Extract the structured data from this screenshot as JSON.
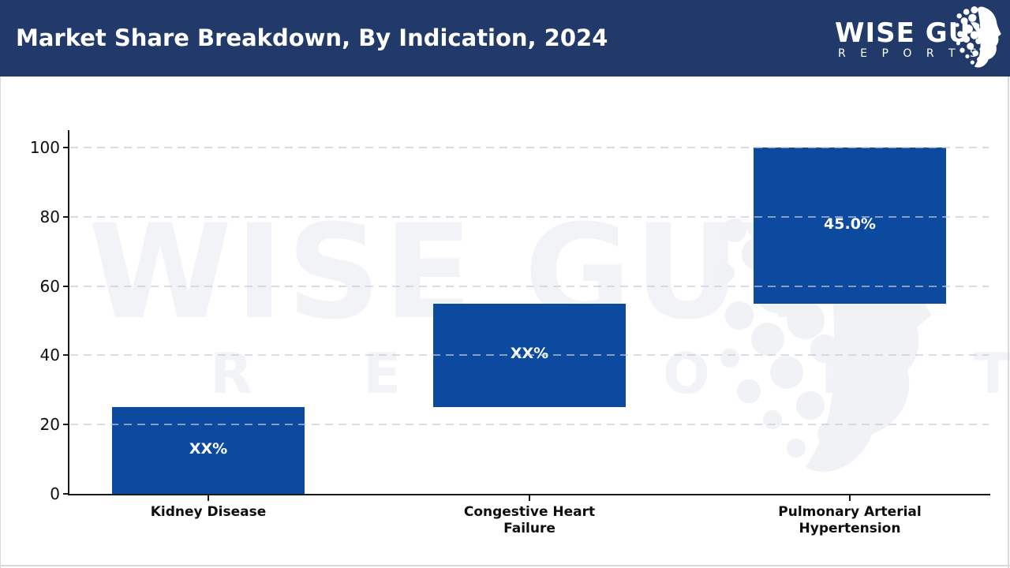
{
  "header": {
    "title": "Market Share Breakdown, By Indication, 2024",
    "bg_color": "#223a69",
    "logo": {
      "line1": "WISE GUY",
      "line2": "R E P O R T S"
    }
  },
  "watermark": {
    "line1": "WISE GUY",
    "line2": "R E P O R T S"
  },
  "chart_data": {
    "type": "bar",
    "subtype": "waterfall-stacked-market-share",
    "title": "Market Share Breakdown, By Indication, 2024",
    "categories": [
      "Kidney Disease",
      "Congestive Heart Failure",
      "Pulmonary Arterial Hypertension"
    ],
    "category_lines": [
      [
        "Kidney Disease"
      ],
      [
        "Congestive Heart",
        "Failure"
      ],
      [
        "Pulmonary Arterial",
        "Hypertension"
      ]
    ],
    "values": [
      25,
      30,
      45
    ],
    "bottoms": [
      0,
      25,
      55
    ],
    "cumulative_tops": [
      25,
      55,
      100
    ],
    "bar_labels": [
      "XX%",
      "XX%",
      "45.0%"
    ],
    "yticks": [
      0,
      20,
      40,
      60,
      80,
      100
    ],
    "ylim": [
      0,
      105
    ],
    "xlabel": "",
    "ylabel": "",
    "grid": "horizontal-dashed-over-bars",
    "legend": "none",
    "bar_color": "#0b4a9f",
    "bar_label_color": "#ffffff",
    "gridline_color": "#d8d8d8",
    "axis_color": "#1a1a1a"
  }
}
